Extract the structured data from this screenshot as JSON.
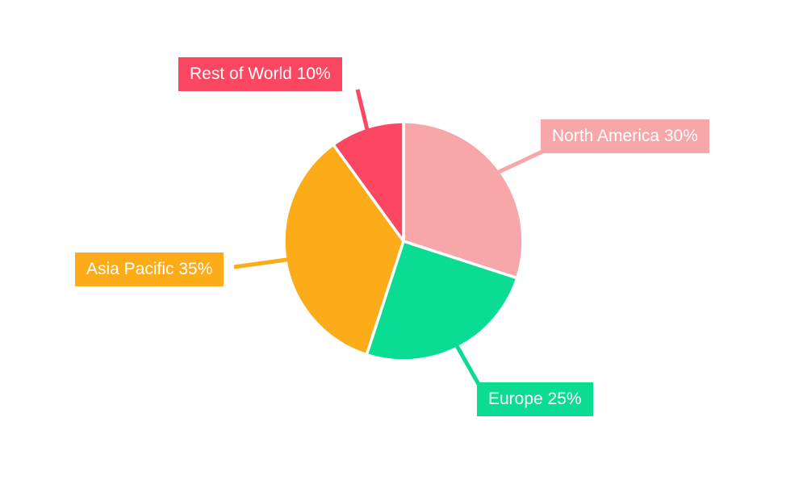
{
  "chart_data": {
    "type": "pie",
    "title": "",
    "categories": [
      "North America",
      "Europe",
      "Asia Pacific",
      "Rest of World"
    ],
    "values": [
      30,
      25,
      35,
      10
    ],
    "unit": "%",
    "labels": [
      "North America 30%",
      "Europe 25%",
      "Asia Pacific 35%",
      "Rest of World 10%"
    ],
    "colors": [
      "#F7A6AA",
      "#0ADC92",
      "#FBAC18",
      "#FB4762"
    ],
    "slice_gap_color": "#FFFFFF",
    "label_text_color": "#FFFFFF",
    "background": "#FFFFFF",
    "start_angle_deg": 0,
    "direction": "clockwise",
    "legend_position": "callout-labels"
  }
}
